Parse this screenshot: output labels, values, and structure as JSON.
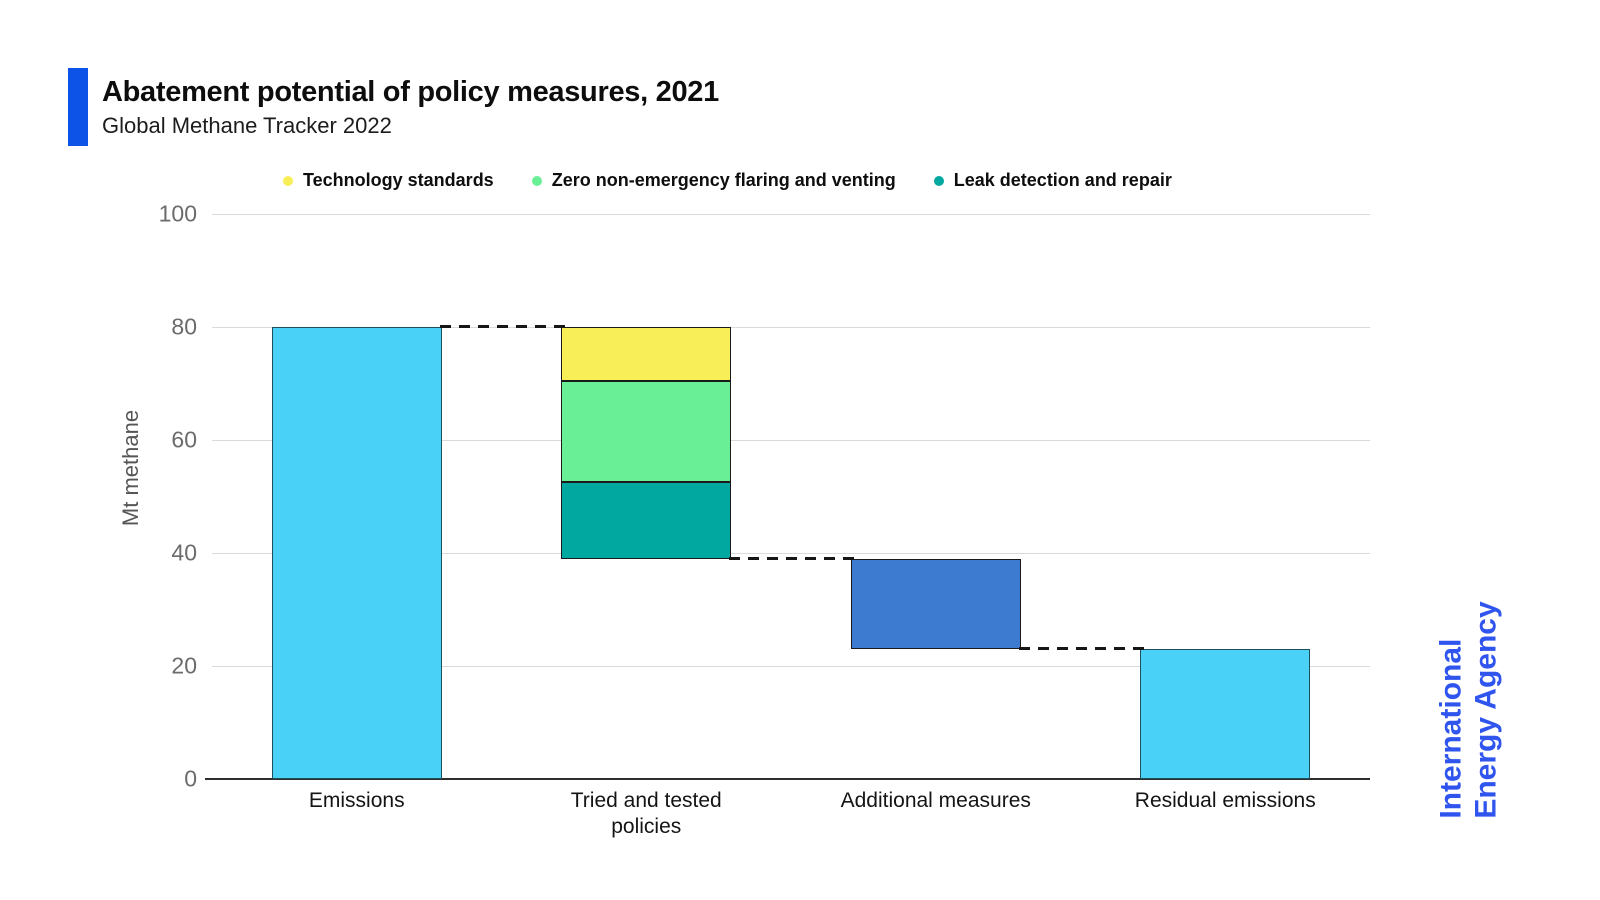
{
  "header": {
    "title": "Abatement potential of policy measures, 2021",
    "subtitle": "Global Methane Tracker 2022"
  },
  "branding": {
    "accent_color": "#0d53e8",
    "logo_color": "#2f55ee",
    "logo_line1": "International",
    "logo_line2": "Energy Agency"
  },
  "chart_data": {
    "type": "bar",
    "subtype": "waterfall-stacked",
    "title": "Abatement potential of policy measures, 2021",
    "subtitle": "Global Methane Tracker 2022",
    "ylabel": "Mt methane",
    "ylim": [
      0,
      100
    ],
    "yticks": [
      0,
      20,
      40,
      60,
      80,
      100
    ],
    "grid": true,
    "legend_position": "top",
    "legend": [
      {
        "label": "Technology standards",
        "color": "#f8ee58"
      },
      {
        "label": "Zero non-emergency flaring and venting",
        "color": "#69f096"
      },
      {
        "label": "Leak detection and repair",
        "color": "#00a89f"
      }
    ],
    "categories": [
      "Emissions",
      "Tried and tested policies",
      "Additional measures",
      "Residual emissions"
    ],
    "bars": [
      {
        "category": "Emissions",
        "segments": [
          {
            "name": "Emissions",
            "from": 0,
            "to": 80,
            "color": "#4ad1f8",
            "stroke": "#1f4e5a"
          }
        ]
      },
      {
        "category": "Tried and tested policies",
        "segments": [
          {
            "name": "Leak detection and repair",
            "from": 39,
            "to": 52.5,
            "color": "#00a89f",
            "stroke": "#1a1a1a"
          },
          {
            "name": "Zero non-emergency flaring and venting",
            "from": 52.5,
            "to": 70.5,
            "color": "#69f096",
            "stroke": "#1a1a1a"
          },
          {
            "name": "Technology standards",
            "from": 70.5,
            "to": 80,
            "color": "#f8ee58",
            "stroke": "#1a1a1a"
          }
        ]
      },
      {
        "category": "Additional measures",
        "segments": [
          {
            "name": "Additional measures",
            "from": 23,
            "to": 39,
            "color": "#3c7bd0",
            "stroke": "#1a1a1a"
          }
        ]
      },
      {
        "category": "Residual emissions",
        "segments": [
          {
            "name": "Residual emissions",
            "from": 0,
            "to": 23,
            "color": "#4ad1f8",
            "stroke": "#1f4e5a"
          }
        ]
      }
    ],
    "connectors": [
      {
        "value": 80,
        "from": 0,
        "to": 1
      },
      {
        "value": 39,
        "from": 1,
        "to": 2
      },
      {
        "value": 23,
        "from": 2,
        "to": 3
      }
    ]
  }
}
